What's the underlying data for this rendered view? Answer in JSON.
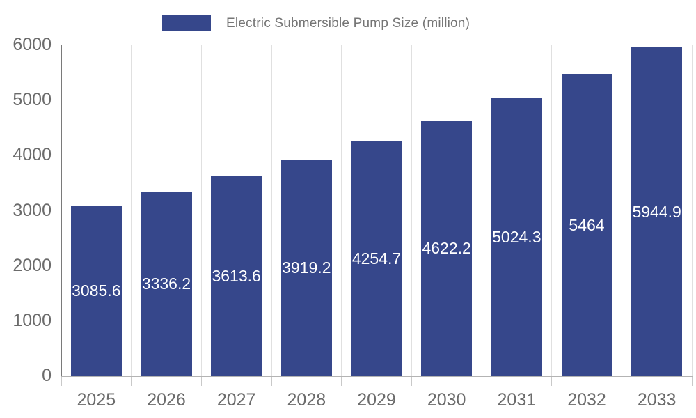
{
  "chart_data": {
    "type": "bar",
    "title": "Electric Submersible Pump Size (million)",
    "categories": [
      "2025",
      "2026",
      "2027",
      "2028",
      "2029",
      "2030",
      "2031",
      "2032",
      "2033"
    ],
    "values": [
      3085.6,
      3336.2,
      3613.6,
      3919.2,
      4254.7,
      4622.2,
      5024.3,
      5464,
      5944.9
    ],
    "value_labels": [
      "3085.6",
      "3336.2",
      "3613.6",
      "3919.2",
      "4254.7",
      "4622.2",
      "5024.3",
      "5464",
      "5944.9"
    ],
    "xlabel": "",
    "ylabel": "",
    "ylim": [
      0,
      6000
    ],
    "yticks": [
      0,
      1000,
      2000,
      3000,
      4000,
      5000,
      6000
    ],
    "grid": "on",
    "legend_position": "top-center",
    "colors": {
      "bar_fill": "#36478B",
      "bar_label_text": "#ffffff",
      "axis_text": "#6b6b6b",
      "title_text": "#757575",
      "grid_line": "#e0e0e0",
      "y_axis_line": "#7a7a7a",
      "x_axis_line": "#b3b3b3",
      "tick_line": "#c9c9c9",
      "background": "#ffffff"
    }
  }
}
